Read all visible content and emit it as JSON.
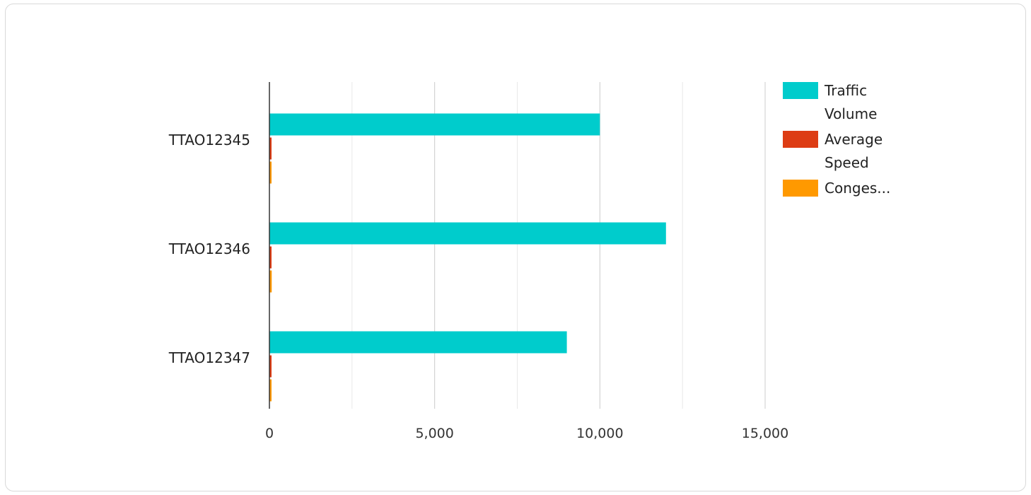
{
  "chart_data": {
    "type": "bar",
    "orientation": "horizontal",
    "categories": [
      "TTAO12345",
      "TTAO12346",
      "TTAO12347"
    ],
    "series": [
      {
        "name": "Traffic Volume",
        "legend_lines": [
          "Traffic",
          "Volume"
        ],
        "color": "#00CCCC",
        "values": [
          10000,
          12000,
          9000
        ]
      },
      {
        "name": "Average Speed",
        "legend_lines": [
          "Average",
          "Speed"
        ],
        "color": "#DD3C14",
        "values": [
          45,
          50,
          40
        ]
      },
      {
        "name": "Conges...",
        "legend_lines": [
          "Conges..."
        ],
        "color": "#FF9900",
        "values": [
          60,
          70,
          55
        ]
      }
    ],
    "x_ticks": [
      {
        "value": 0,
        "label": "0"
      },
      {
        "value": 5000,
        "label": "5,000"
      },
      {
        "value": 10000,
        "label": "10,000"
      },
      {
        "value": 15000,
        "label": "15,000"
      }
    ],
    "minor_gridlines": [
      2500,
      7500,
      12500
    ],
    "xlim": [
      0,
      15000
    ],
    "grid": true,
    "legend_position": "right",
    "title": "",
    "xlabel": "",
    "ylabel": ""
  }
}
